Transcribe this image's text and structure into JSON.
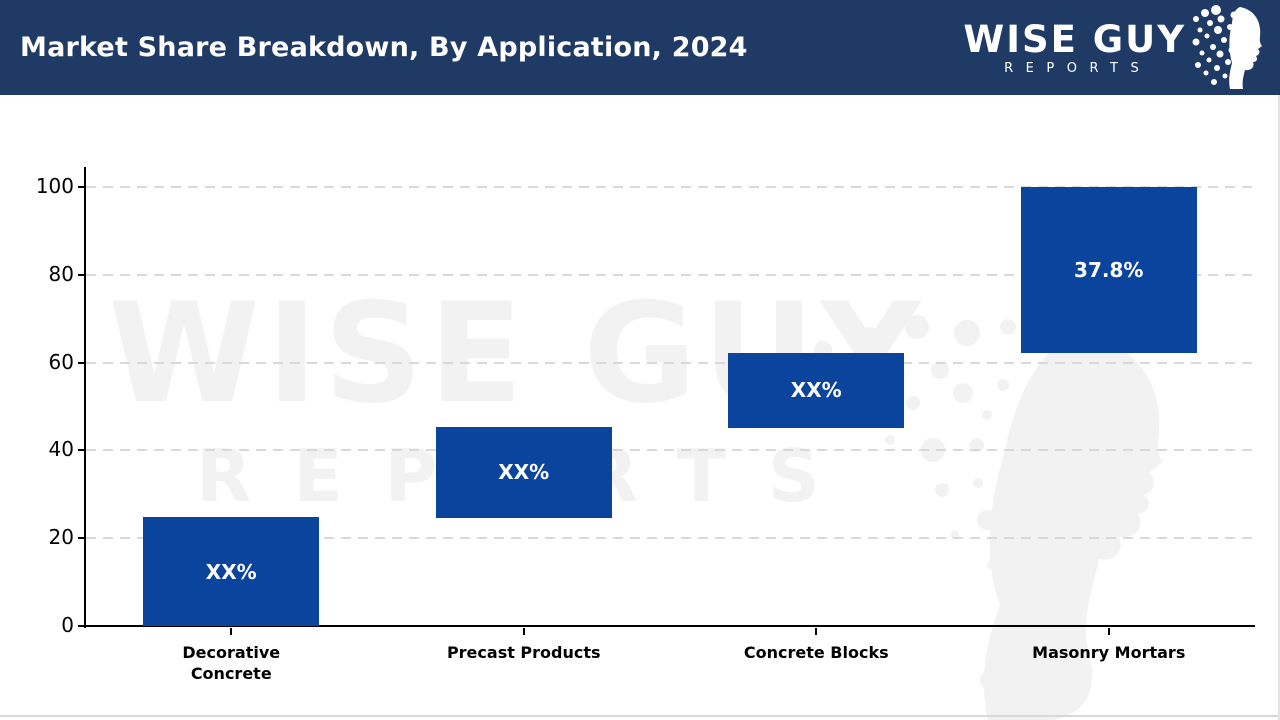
{
  "header": {
    "title": "Market Share Breakdown, By Application, 2024",
    "logo": {
      "wordmark": "WISE GUY",
      "subtext": "REPORTS",
      "face_icon": "face-dots-icon"
    }
  },
  "watermark": {
    "wordmark": "WISE GUY",
    "subtext": "REPORTS",
    "face_icon": "face-dots-watermark-icon"
  },
  "colors": {
    "header_bg": "#203a66",
    "title_text": "#ffffff",
    "bar": "#0b449d",
    "bar_label": "#ffffff",
    "gridline": "#d9d9d9",
    "axis": "#000000",
    "watermark": "#f2f2f2"
  },
  "chart_data": {
    "type": "bar",
    "variant": "floating-segment-waterfall",
    "title": "Market Share Breakdown, By Application, 2024",
    "xlabel": "",
    "ylabel": "",
    "ylim": [
      0,
      105
    ],
    "y_ticks": [
      0,
      20,
      40,
      60,
      80,
      100
    ],
    "grid": "dashed-horizontal",
    "legend": "none",
    "categories": [
      "Decorative Concrete",
      "Precast Products",
      "Concrete Blocks",
      "Masonry Mortars"
    ],
    "bars": [
      {
        "category": "Decorative Concrete",
        "label_lines": [
          "Decorative",
          "Concrete"
        ],
        "start": 0,
        "end": 24.8,
        "value_label": "XX%"
      },
      {
        "category": "Precast Products",
        "label_lines": [
          "Precast Products"
        ],
        "start": 24.7,
        "end": 45.3,
        "value_label": "XX%"
      },
      {
        "category": "Concrete Blocks",
        "label_lines": [
          "Concrete Blocks"
        ],
        "start": 45.2,
        "end": 62.3,
        "value_label": "XX%"
      },
      {
        "category": "Masonry Mortars",
        "label_lines": [
          "Masonry Mortars"
        ],
        "start": 62.2,
        "end": 100,
        "value_label": "37.8%"
      }
    ]
  }
}
